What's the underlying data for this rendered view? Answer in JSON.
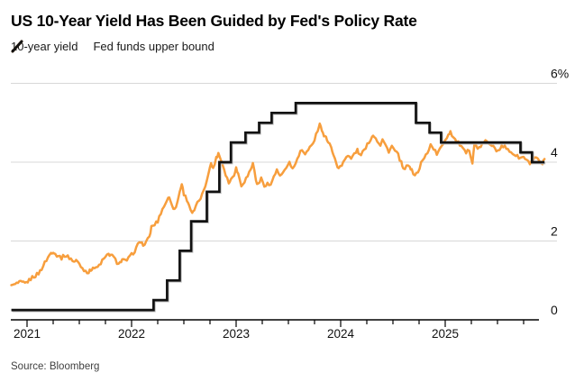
{
  "title": "US 10-Year Yield Has Been Guided by Fed's Policy Rate",
  "source": "Source: Bloomberg",
  "legend": {
    "items": [
      {
        "label": "10-year yield",
        "color": "#F79E3D"
      },
      {
        "label": "Fed funds upper bound",
        "color": "#111111"
      }
    ]
  },
  "colors": {
    "yield_line": "#F79E3D",
    "fed_line": "#111111",
    "gridline": "#D8D8D8",
    "axis": "#000000",
    "tick_label": "#111111",
    "shadow": "#c3c3c3"
  },
  "chart_data": {
    "type": "line",
    "title": "US 10-Year Yield Has Been Guided by Fed's Policy Rate",
    "x_unit": "years_since_2021_01_01",
    "xlim": [
      -0.155,
      4.95
    ],
    "ylim": [
      0,
      6
    ],
    "grid": "horizontal",
    "legend_position": "top-left",
    "y_axis_side": "right",
    "y_ticks": [
      {
        "v": 0,
        "label": "0"
      },
      {
        "v": 2,
        "label": "2"
      },
      {
        "v": 4,
        "label": "4"
      },
      {
        "v": 6,
        "label": "6%"
      }
    ],
    "x_ticks_major": [
      {
        "t": 0,
        "label": "2021"
      },
      {
        "t": 1,
        "label": "2022"
      },
      {
        "t": 2,
        "label": "2023"
      },
      {
        "t": 3,
        "label": "2024"
      },
      {
        "t": 4,
        "label": "2025"
      }
    ],
    "x_minor_tick_step": 0.25,
    "noise_amplitude": 0.045,
    "series": [
      {
        "name": "10-year yield",
        "style": "line",
        "color": "#F79E3D",
        "points": [
          [
            -0.15,
            0.88
          ],
          [
            -0.1,
            0.92
          ],
          [
            -0.06,
            0.95
          ],
          [
            -0.02,
            0.92
          ],
          [
            0.02,
            1.0
          ],
          [
            0.05,
            1.08
          ],
          [
            0.08,
            1.12
          ],
          [
            0.11,
            1.18
          ],
          [
            0.14,
            1.3
          ],
          [
            0.17,
            1.45
          ],
          [
            0.2,
            1.58
          ],
          [
            0.23,
            1.7
          ],
          [
            0.25,
            1.74
          ],
          [
            0.27,
            1.66
          ],
          [
            0.3,
            1.63
          ],
          [
            0.33,
            1.57
          ],
          [
            0.36,
            1.64
          ],
          [
            0.39,
            1.6
          ],
          [
            0.42,
            1.55
          ],
          [
            0.45,
            1.47
          ],
          [
            0.47,
            1.5
          ],
          [
            0.5,
            1.43
          ],
          [
            0.53,
            1.3
          ],
          [
            0.56,
            1.25
          ],
          [
            0.59,
            1.2
          ],
          [
            0.61,
            1.27
          ],
          [
            0.63,
            1.33
          ],
          [
            0.66,
            1.3
          ],
          [
            0.69,
            1.38
          ],
          [
            0.72,
            1.5
          ],
          [
            0.75,
            1.58
          ],
          [
            0.78,
            1.66
          ],
          [
            0.8,
            1.65
          ],
          [
            0.83,
            1.58
          ],
          [
            0.86,
            1.46
          ],
          [
            0.89,
            1.45
          ],
          [
            0.91,
            1.52
          ],
          [
            0.94,
            1.49
          ],
          [
            0.97,
            1.55
          ],
          [
            1.0,
            1.65
          ],
          [
            1.03,
            1.75
          ],
          [
            1.06,
            1.9
          ],
          [
            1.09,
            2.0
          ],
          [
            1.11,
            1.88
          ],
          [
            1.14,
            1.97
          ],
          [
            1.17,
            2.1
          ],
          [
            1.19,
            2.35
          ],
          [
            1.22,
            2.42
          ],
          [
            1.25,
            2.5
          ],
          [
            1.28,
            2.72
          ],
          [
            1.31,
            2.88
          ],
          [
            1.34,
            3.05
          ],
          [
            1.36,
            3.1
          ],
          [
            1.39,
            2.92
          ],
          [
            1.41,
            2.78
          ],
          [
            1.44,
            3.0
          ],
          [
            1.46,
            3.25
          ],
          [
            1.48,
            3.45
          ],
          [
            1.5,
            3.2
          ],
          [
            1.53,
            3.05
          ],
          [
            1.55,
            2.92
          ],
          [
            1.58,
            2.68
          ],
          [
            1.6,
            2.78
          ],
          [
            1.63,
            2.95
          ],
          [
            1.66,
            3.1
          ],
          [
            1.69,
            3.25
          ],
          [
            1.72,
            3.55
          ],
          [
            1.74,
            3.8
          ],
          [
            1.76,
            3.95
          ],
          [
            1.78,
            3.85
          ],
          [
            1.81,
            4.1
          ],
          [
            1.83,
            4.23
          ],
          [
            1.85,
            4.1
          ],
          [
            1.87,
            3.95
          ],
          [
            1.9,
            3.7
          ],
          [
            1.93,
            3.48
          ],
          [
            1.95,
            3.55
          ],
          [
            1.98,
            3.7
          ],
          [
            2.0,
            3.85
          ],
          [
            2.02,
            3.7
          ],
          [
            2.05,
            3.42
          ],
          [
            2.08,
            3.52
          ],
          [
            2.11,
            3.65
          ],
          [
            2.14,
            3.82
          ],
          [
            2.16,
            3.98
          ],
          [
            2.19,
            3.55
          ],
          [
            2.21,
            3.42
          ],
          [
            2.24,
            3.58
          ],
          [
            2.27,
            3.42
          ],
          [
            2.3,
            3.46
          ],
          [
            2.33,
            3.4
          ],
          [
            2.36,
            3.65
          ],
          [
            2.39,
            3.78
          ],
          [
            2.42,
            3.65
          ],
          [
            2.45,
            3.72
          ],
          [
            2.48,
            3.82
          ],
          [
            2.51,
            4.02
          ],
          [
            2.54,
            3.82
          ],
          [
            2.57,
            3.96
          ],
          [
            2.6,
            4.18
          ],
          [
            2.63,
            4.32
          ],
          [
            2.66,
            4.18
          ],
          [
            2.69,
            4.28
          ],
          [
            2.72,
            4.45
          ],
          [
            2.75,
            4.58
          ],
          [
            2.78,
            4.82
          ],
          [
            2.8,
            4.98
          ],
          [
            2.82,
            4.82
          ],
          [
            2.84,
            4.62
          ],
          [
            2.86,
            4.68
          ],
          [
            2.88,
            4.5
          ],
          [
            2.91,
            4.38
          ],
          [
            2.93,
            4.22
          ],
          [
            2.96,
            3.92
          ],
          [
            2.98,
            3.85
          ],
          [
            3.01,
            3.95
          ],
          [
            3.04,
            4.08
          ],
          [
            3.07,
            4.16
          ],
          [
            3.1,
            4.08
          ],
          [
            3.13,
            4.22
          ],
          [
            3.16,
            4.3
          ],
          [
            3.18,
            4.18
          ],
          [
            3.21,
            4.25
          ],
          [
            3.24,
            4.35
          ],
          [
            3.27,
            4.52
          ],
          [
            3.3,
            4.65
          ],
          [
            3.32,
            4.68
          ],
          [
            3.35,
            4.55
          ],
          [
            3.38,
            4.45
          ],
          [
            3.4,
            4.58
          ],
          [
            3.43,
            4.42
          ],
          [
            3.46,
            4.28
          ],
          [
            3.49,
            4.4
          ],
          [
            3.52,
            4.28
          ],
          [
            3.55,
            4.18
          ],
          [
            3.58,
            3.98
          ],
          [
            3.6,
            3.8
          ],
          [
            3.63,
            3.88
          ],
          [
            3.66,
            3.92
          ],
          [
            3.68,
            3.78
          ],
          [
            3.71,
            3.68
          ],
          [
            3.74,
            3.74
          ],
          [
            3.77,
            3.98
          ],
          [
            3.8,
            4.1
          ],
          [
            3.83,
            4.25
          ],
          [
            3.86,
            4.44
          ],
          [
            3.89,
            4.35
          ],
          [
            3.92,
            4.2
          ],
          [
            3.95,
            4.32
          ],
          [
            3.98,
            4.48
          ],
          [
            4.0,
            4.57
          ],
          [
            4.03,
            4.7
          ],
          [
            4.05,
            4.78
          ],
          [
            4.08,
            4.62
          ],
          [
            4.11,
            4.52
          ],
          [
            4.14,
            4.45
          ],
          [
            4.17,
            4.32
          ],
          [
            4.2,
            4.22
          ],
          [
            4.23,
            4.32
          ],
          [
            4.26,
            4.01
          ],
          [
            4.28,
            4.48
          ],
          [
            4.31,
            4.33
          ],
          [
            4.34,
            4.42
          ],
          [
            4.37,
            4.48
          ],
          [
            4.4,
            4.55
          ],
          [
            4.43,
            4.42
          ],
          [
            4.46,
            4.38
          ],
          [
            4.49,
            4.3
          ],
          [
            4.52,
            4.35
          ],
          [
            4.54,
            4.44
          ],
          [
            4.57,
            4.38
          ],
          [
            4.6,
            4.3
          ],
          [
            4.63,
            4.26
          ],
          [
            4.66,
            4.2
          ],
          [
            4.69,
            4.14
          ],
          [
            4.72,
            4.1
          ],
          [
            4.75,
            4.13
          ],
          [
            4.78,
            4.03
          ],
          [
            4.81,
            3.97
          ],
          [
            4.84,
            4.05
          ],
          [
            4.87,
            4.1
          ],
          [
            4.9,
            4.0
          ],
          [
            4.93,
            3.94
          ],
          [
            4.95,
            4.08
          ]
        ]
      },
      {
        "name": "Fed funds upper bound",
        "style": "step",
        "color": "#111111",
        "points": [
          [
            -0.15,
            0.25
          ],
          [
            1.21,
            0.5
          ],
          [
            1.34,
            1.0
          ],
          [
            1.46,
            1.75
          ],
          [
            1.57,
            2.5
          ],
          [
            1.72,
            3.25
          ],
          [
            1.84,
            4.0
          ],
          [
            1.95,
            4.5
          ],
          [
            2.09,
            4.75
          ],
          [
            2.22,
            5.0
          ],
          [
            2.34,
            5.25
          ],
          [
            2.57,
            5.5
          ],
          [
            3.72,
            5.0
          ],
          [
            3.85,
            4.75
          ],
          [
            3.96,
            4.5
          ],
          [
            4.72,
            4.25
          ],
          [
            4.83,
            4.0
          ],
          [
            4.95,
            4.0
          ]
        ]
      }
    ]
  }
}
